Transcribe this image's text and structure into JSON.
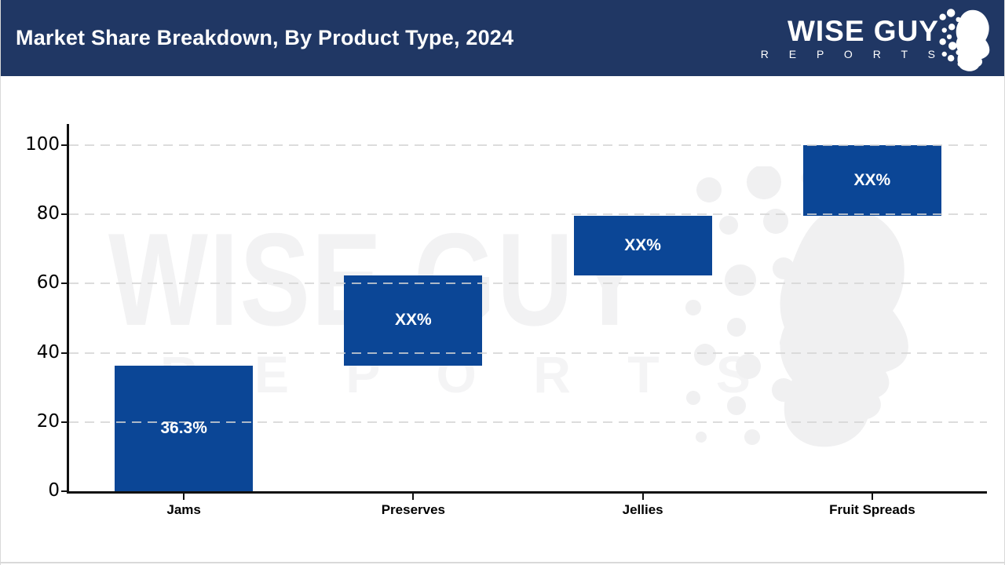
{
  "header": {
    "title": "Market Share Breakdown, By Product Type, 2024",
    "logo": {
      "name": "WISE GUY",
      "sub": "R E P O R T S"
    }
  },
  "watermark": {
    "big": "WISE GUY",
    "sub": "R E P O R T S"
  },
  "icons": {
    "logo_head": "dotted-face-profile-icon",
    "watermark_head": "dotted-face-profile-icon"
  },
  "colors": {
    "header_bg": "#203764",
    "bar": "#0b4696",
    "bar_label": "#ffffff",
    "grid": "#d4d4d4",
    "axis": "#111111",
    "watermark": "#f2f2f3"
  },
  "chart_data": {
    "type": "bar",
    "subtype": "waterfall-floating-bars",
    "title": "Market Share Breakdown, By Product Type, 2024",
    "categories": [
      "Jams",
      "Preserves",
      "Jellies",
      "Fruit Spreads"
    ],
    "segments": [
      {
        "category": "Jams",
        "start": 0,
        "end": 36.3,
        "label": "36.3%"
      },
      {
        "category": "Preserves",
        "start": 36.3,
        "end": 62.4,
        "label": "XX%"
      },
      {
        "category": "Jellies",
        "start": 62.4,
        "end": 79.5,
        "label": "XX%"
      },
      {
        "category": "Fruit Spreads",
        "start": 79.5,
        "end": 100,
        "label": "XX%"
      }
    ],
    "yticks": [
      0,
      20,
      40,
      60,
      80,
      100
    ],
    "ylim": [
      0,
      106
    ],
    "xlabel": "",
    "ylabel": "",
    "grid": "dashed-horizontal",
    "legend": "none"
  }
}
